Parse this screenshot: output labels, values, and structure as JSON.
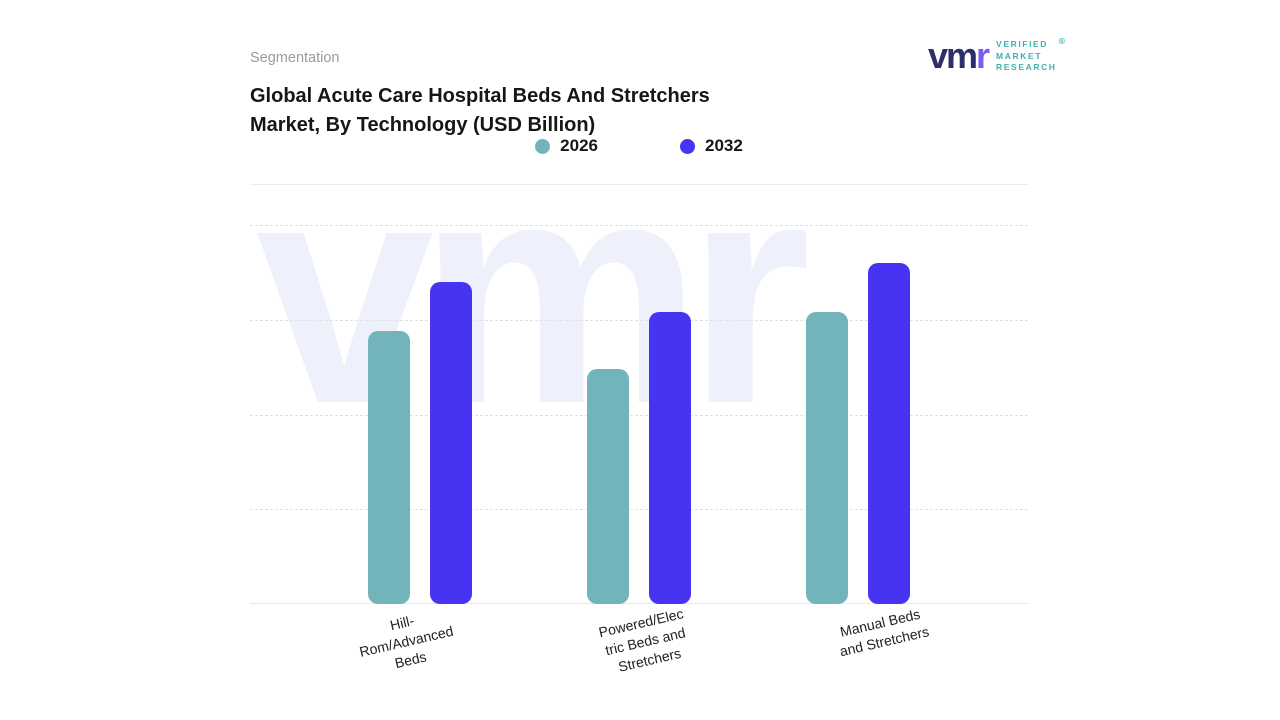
{
  "header": {
    "eyebrow": "Segmentation",
    "title_line1": "Global Acute Care Hospital Beds And Stretchers",
    "title_line2": "Market, By Technology (USD Billion)"
  },
  "logo": {
    "monogram_primary": "vm",
    "monogram_accent": "r",
    "line1": "VERIFIED",
    "line2": "MARKET",
    "line3": "RESEARCH",
    "registered": "®",
    "accent_color": "#7b5cf0",
    "primary_color": "#2b2f6b",
    "text_color": "#3fb0b0"
  },
  "legend": [
    {
      "label": "2026",
      "color": "#72b4ba"
    },
    {
      "label": "2032",
      "color": "#4734f2"
    }
  ],
  "chart_data": {
    "type": "bar",
    "title": "Global Acute Care Hospital Beds And Stretchers Market, By Technology (USD Billion)",
    "categories": [
      "Hill-Rom/Advanced Beds",
      "Powered/Electric Beds and Stretchers",
      "Manual Beds and Stretchers"
    ],
    "categories_display": [
      "Hill-\nRom/Advanced\nBeds",
      "Powered/Elec\ntric Beds and\nStretchers",
      "Manual Beds\nand Stretchers"
    ],
    "series": [
      {
        "name": "2026",
        "color": "#72b4ba",
        "values": [
          72,
          62,
          77
        ]
      },
      {
        "name": "2032",
        "color": "#4734f2",
        "values": [
          85,
          77,
          90
        ]
      }
    ],
    "xlabel": "",
    "ylabel": "",
    "ylim": [
      0,
      100
    ],
    "y_axis_labels_visible": false,
    "grid": "dashed-horizontal",
    "legend_position": "top-center",
    "watermark": "vmr"
  }
}
